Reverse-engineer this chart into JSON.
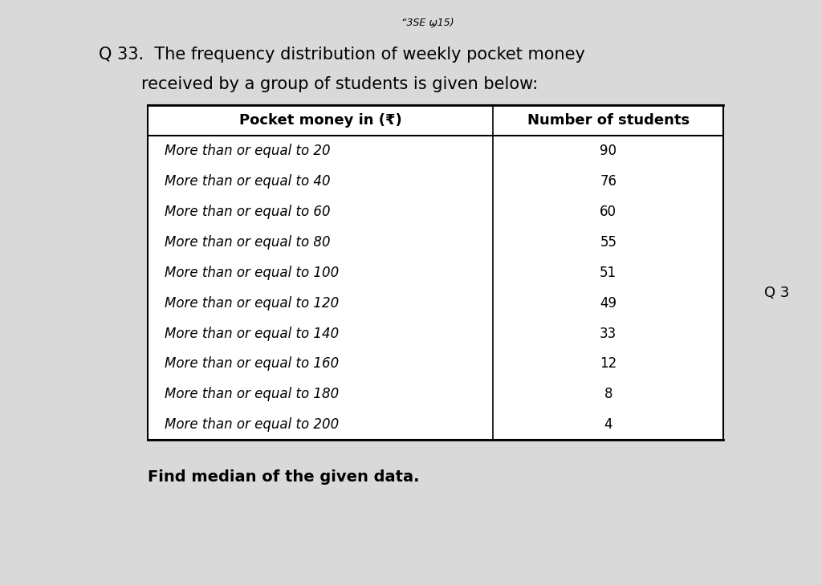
{
  "header_text": "Q 33. The frequency distribution of weekly pocket money\n       received by a group of students is given below:",
  "top_text": "“3SE ϣ15)",
  "col1_header": "Pocket money in (₹)",
  "col2_header": "Number of students",
  "rows": [
    [
      "More than or equal to 20",
      "90"
    ],
    [
      "More than or equal to 40",
      "76"
    ],
    [
      "More than or equal to 60",
      "60"
    ],
    [
      "More than or equal to 80",
      "55"
    ],
    [
      "More than or equal to 100",
      "51"
    ],
    [
      "More than or equal to 120",
      "49"
    ],
    [
      "More than or equal to 140",
      "33"
    ],
    [
      "More than or equal to 160",
      "12"
    ],
    [
      "More than or equal to 180",
      "8"
    ],
    [
      "More than or equal to 200",
      "4"
    ]
  ],
  "footer_text": "Find median of the given data.",
  "side_text": "Q 3",
  "bg_color": "#d9d9d9",
  "table_bg": "#ffffff",
  "text_color": "#000000",
  "title_fontsize": 15,
  "header_fontsize": 13,
  "cell_fontsize": 12,
  "footer_fontsize": 14
}
